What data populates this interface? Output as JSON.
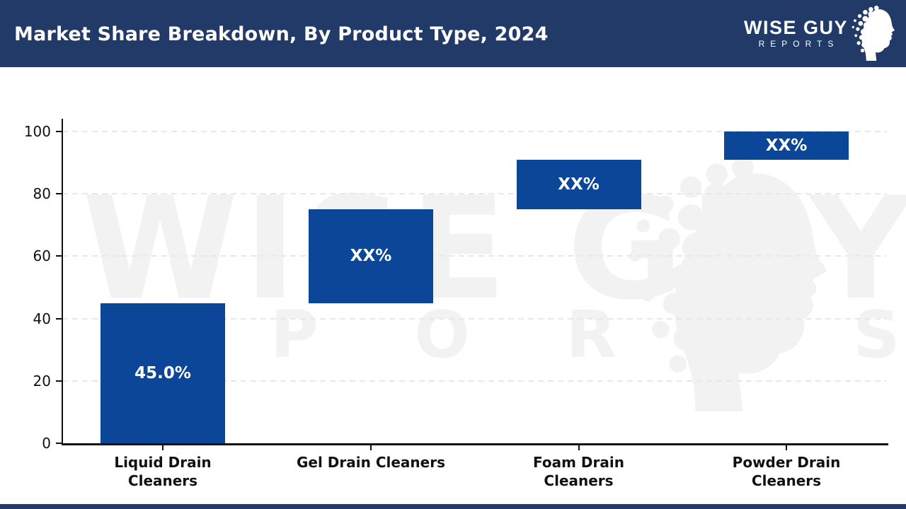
{
  "header": {
    "title": "Market Share Breakdown, By Product Type, 2024",
    "logo": {
      "line1": "WISE GUY",
      "line2": "REPORTS"
    }
  },
  "watermark": {
    "line1": "WISE GUY",
    "line2": "P O R T S"
  },
  "colors": {
    "header_bg": "#213a68",
    "bar": "#0b4698",
    "bar_label": "#ffffff",
    "gridline": "#e8e8e8",
    "axis": "#111111",
    "watermark": "#f2f2f2"
  },
  "chart_data": {
    "type": "bar",
    "subtype": "waterfall",
    "title": "Market Share Breakdown, By Product Type, 2024",
    "categories": [
      "Liquid Drain Cleaners",
      "Gel Drain Cleaners",
      "Foam Drain Cleaners",
      "Powder Drain Cleaners"
    ],
    "categories_lines": [
      [
        "Liquid Drain",
        "Cleaners"
      ],
      [
        "Gel Drain Cleaners"
      ],
      [
        "Foam Drain",
        "Cleaners"
      ],
      [
        "Powder Drain",
        "Cleaners"
      ]
    ],
    "segments": [
      {
        "category": "Liquid Drain Cleaners",
        "start": 0,
        "end": 45,
        "label": "45.0%"
      },
      {
        "category": "Gel Drain Cleaners",
        "start": 45,
        "end": 75,
        "label": "XX%"
      },
      {
        "category": "Foam Drain Cleaners",
        "start": 75,
        "end": 91,
        "label": "XX%"
      },
      {
        "category": "Powder Drain Cleaners",
        "start": 91,
        "end": 100,
        "label": "XX%"
      }
    ],
    "xlabel": "",
    "ylabel": "",
    "yticks": [
      0,
      20,
      40,
      60,
      80,
      100
    ],
    "ylim": [
      0,
      104
    ],
    "grid": "horizontal-dashed",
    "legend": "none",
    "values_unit": "%"
  }
}
